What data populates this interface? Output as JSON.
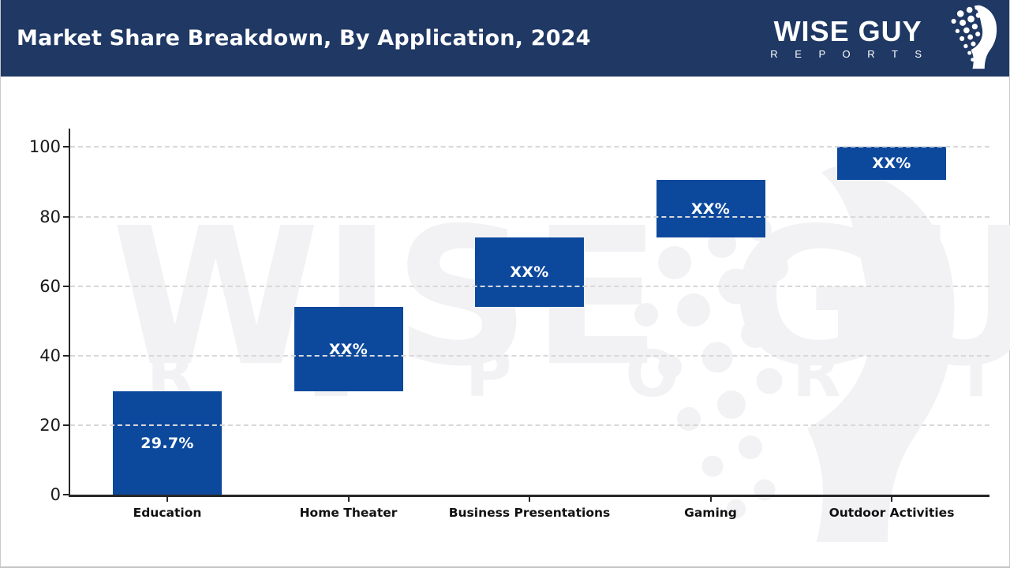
{
  "header": {
    "title": "Market Share Breakdown, By Application, 2024",
    "background": "#1f3864",
    "logo": {
      "line1": "WISE GUY",
      "line2": "R E P O R T S",
      "head_icon": "dotted-head-profile"
    }
  },
  "watermark": {
    "line1": "WISE GUY",
    "line2": "R E P O R T S",
    "color": "#f2f2f4"
  },
  "chart_data": {
    "type": "bar",
    "subtype": "floating-segment-waterfall",
    "title": "Market Share Breakdown, By Application, 2024",
    "categories": [
      "Education",
      "Home Theater",
      "Business Presentations",
      "Gaming",
      "Outdoor Activities"
    ],
    "segments": [
      [
        0,
        29.7
      ],
      [
        29.7,
        54.0
      ],
      [
        54.0,
        74.0
      ],
      [
        74.0,
        90.5
      ],
      [
        90.5,
        100.0
      ]
    ],
    "bar_labels": [
      "29.7%",
      "XX%",
      "XX%",
      "XX%",
      "XX%"
    ],
    "values_pct": [
      29.7,
      24.3,
      20.0,
      16.5,
      9.5
    ],
    "yticks": [
      0,
      20,
      40,
      60,
      80,
      100
    ],
    "ylim": [
      0,
      105
    ],
    "xlabel": "",
    "ylabel": "",
    "grid": "horizontal-dashed-over-bars",
    "legend": "none",
    "bar_color": "#0c499d",
    "bar_label_color": "#ffffff",
    "grid_color": "#d8d8d8",
    "axis_color": "#262626"
  }
}
